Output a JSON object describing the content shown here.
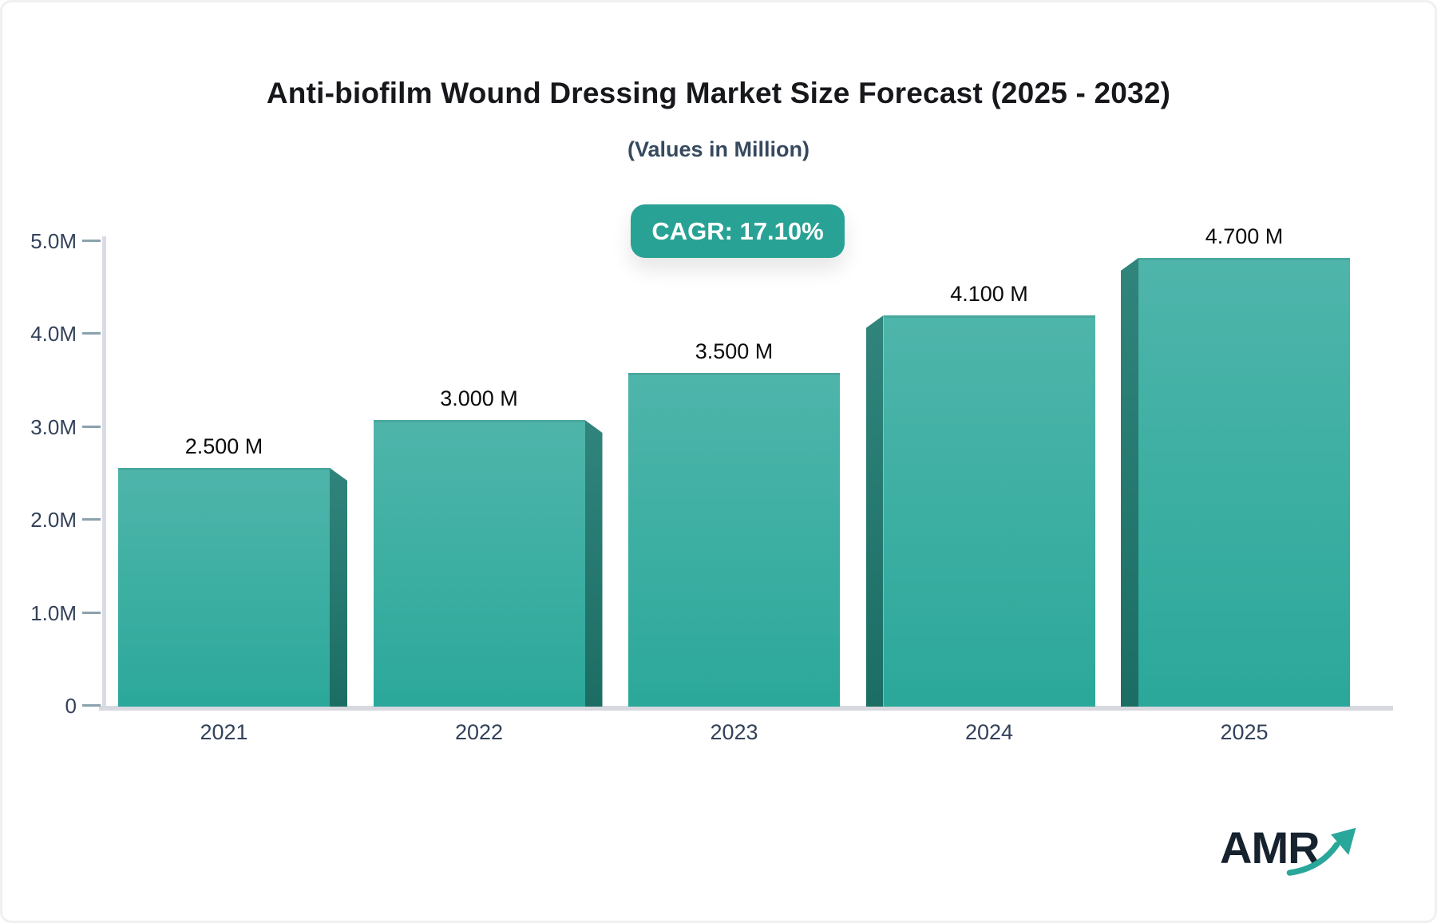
{
  "header": {
    "title": "Anti-biofilm Wound Dressing Market Size Forecast (2025 - 2032)",
    "subtitle": "(Values in Million)"
  },
  "badge": {
    "label": "CAGR: 17.10%"
  },
  "chart_data": {
    "type": "bar",
    "title": "Anti-biofilm Wound Dressing Market Size Forecast (2025 - 2032)",
    "subtitle": "(Values in Million)",
    "cagr": "17.10%",
    "categories": [
      "2021",
      "2022",
      "2023",
      "2024",
      "2025"
    ],
    "values": [
      2.5,
      3.0,
      3.5,
      4.1,
      4.7
    ],
    "value_labels": [
      "2.500 M",
      "3.000 M",
      "3.500 M",
      "4.100 M",
      "4.700 M"
    ],
    "y_ticks": [
      "0",
      "1.0M",
      "2.0M",
      "3.0M",
      "4.0M",
      "5.0M"
    ],
    "ylim": [
      0,
      5
    ],
    "unit": "M",
    "grid": "off",
    "legend": "none",
    "colors": {
      "bar_top": "#4fb5ab",
      "bar_bottom": "#2ba89a",
      "bar_side": "#1f7a70",
      "accent": "#28a295",
      "axis_text": "#33415a"
    }
  },
  "logo": {
    "text": "AMR"
  }
}
